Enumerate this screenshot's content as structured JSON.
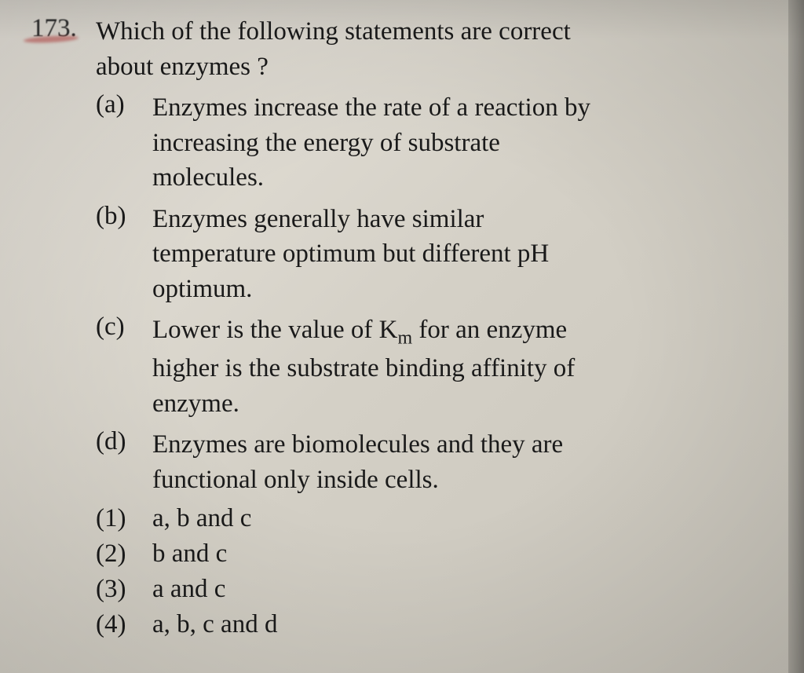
{
  "question": {
    "number": "173.",
    "text_line1": "Which of the following statements are correct",
    "text_line2": "about enzymes ?"
  },
  "options": {
    "a": {
      "label": "(a)",
      "line1": "Enzymes increase the rate of a reaction by",
      "line2": "increasing the energy of substrate",
      "line3": "molecules."
    },
    "b": {
      "label": "(b)",
      "line1": "Enzymes generally have similar",
      "line2": "temperature optimum but different pH",
      "line3": "optimum."
    },
    "c": {
      "label": "(c)",
      "pre": "Lower is the value of K",
      "sub": "m",
      "post": " for an enzyme",
      "line2": "higher is the substrate binding affinity of",
      "line3": "enzyme."
    },
    "d": {
      "label": "(d)",
      "line1": "Enzymes are biomolecules and they are",
      "line2": "functional only inside cells."
    }
  },
  "answers": {
    "1": {
      "label": "(1)",
      "text": "a, b and c"
    },
    "2": {
      "label": "(2)",
      "text": "b and c"
    },
    "3": {
      "label": "(3)",
      "text": "a and c"
    },
    "4": {
      "label": "(4)",
      "text": "a, b, c and d"
    }
  },
  "style": {
    "background_gradient": [
      "#e8e4dc",
      "#d4d0c6",
      "#c8c4ba"
    ],
    "text_color": "#1a1a1a",
    "font_size_pt": 33,
    "sub_font_size_pt": 24,
    "underline_color": "rgba(180,30,30,0.45)",
    "font_family": "Georgia, Times New Roman, serif"
  }
}
